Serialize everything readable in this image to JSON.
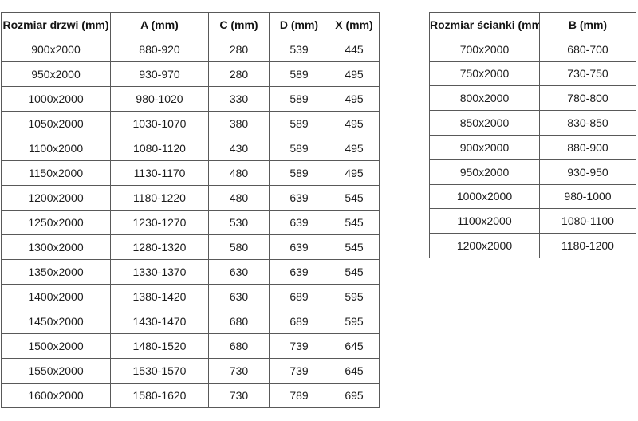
{
  "page": {
    "background": "#ffffff",
    "border_color": "#595959",
    "text_color": "#1c1c1c"
  },
  "tables": [
    {
      "name": "door-size-table",
      "headers": [
        "Rozmiar drzwi (mm)",
        "A (mm)",
        "C (mm)",
        "D (mm)",
        "X (mm)"
      ],
      "rows": [
        [
          "900x2000",
          "880-920",
          "280",
          "539",
          "445"
        ],
        [
          "950x2000",
          "930-970",
          "280",
          "589",
          "495"
        ],
        [
          "1000x2000",
          "980-1020",
          "330",
          "589",
          "495"
        ],
        [
          "1050x2000",
          "1030-1070",
          "380",
          "589",
          "495"
        ],
        [
          "1100x2000",
          "1080-1120",
          "430",
          "589",
          "495"
        ],
        [
          "1150x2000",
          "1130-1170",
          "480",
          "589",
          "495"
        ],
        [
          "1200x2000",
          "1180-1220",
          "480",
          "639",
          "545"
        ],
        [
          "1250x2000",
          "1230-1270",
          "530",
          "639",
          "545"
        ],
        [
          "1300x2000",
          "1280-1320",
          "580",
          "639",
          "545"
        ],
        [
          "1350x2000",
          "1330-1370",
          "630",
          "639",
          "545"
        ],
        [
          "1400x2000",
          "1380-1420",
          "630",
          "689",
          "595"
        ],
        [
          "1450x2000",
          "1430-1470",
          "680",
          "689",
          "595"
        ],
        [
          "1500x2000",
          "1480-1520",
          "680",
          "739",
          "645"
        ],
        [
          "1550x2000",
          "1530-1570",
          "730",
          "739",
          "645"
        ],
        [
          "1600x2000",
          "1580-1620",
          "730",
          "789",
          "695"
        ]
      ]
    },
    {
      "name": "wall-size-table",
      "headers": [
        "Rozmiar ścianki (mm)",
        "B (mm)"
      ],
      "rows": [
        [
          "700x2000",
          "680-700"
        ],
        [
          "750x2000",
          "730-750"
        ],
        [
          "800x2000",
          "780-800"
        ],
        [
          "850x2000",
          "830-850"
        ],
        [
          "900x2000",
          "880-900"
        ],
        [
          "950x2000",
          "930-950"
        ],
        [
          "1000x2000",
          "980-1000"
        ],
        [
          "1100x2000",
          "1080-1100"
        ],
        [
          "1200x2000",
          "1180-1200"
        ]
      ]
    }
  ]
}
